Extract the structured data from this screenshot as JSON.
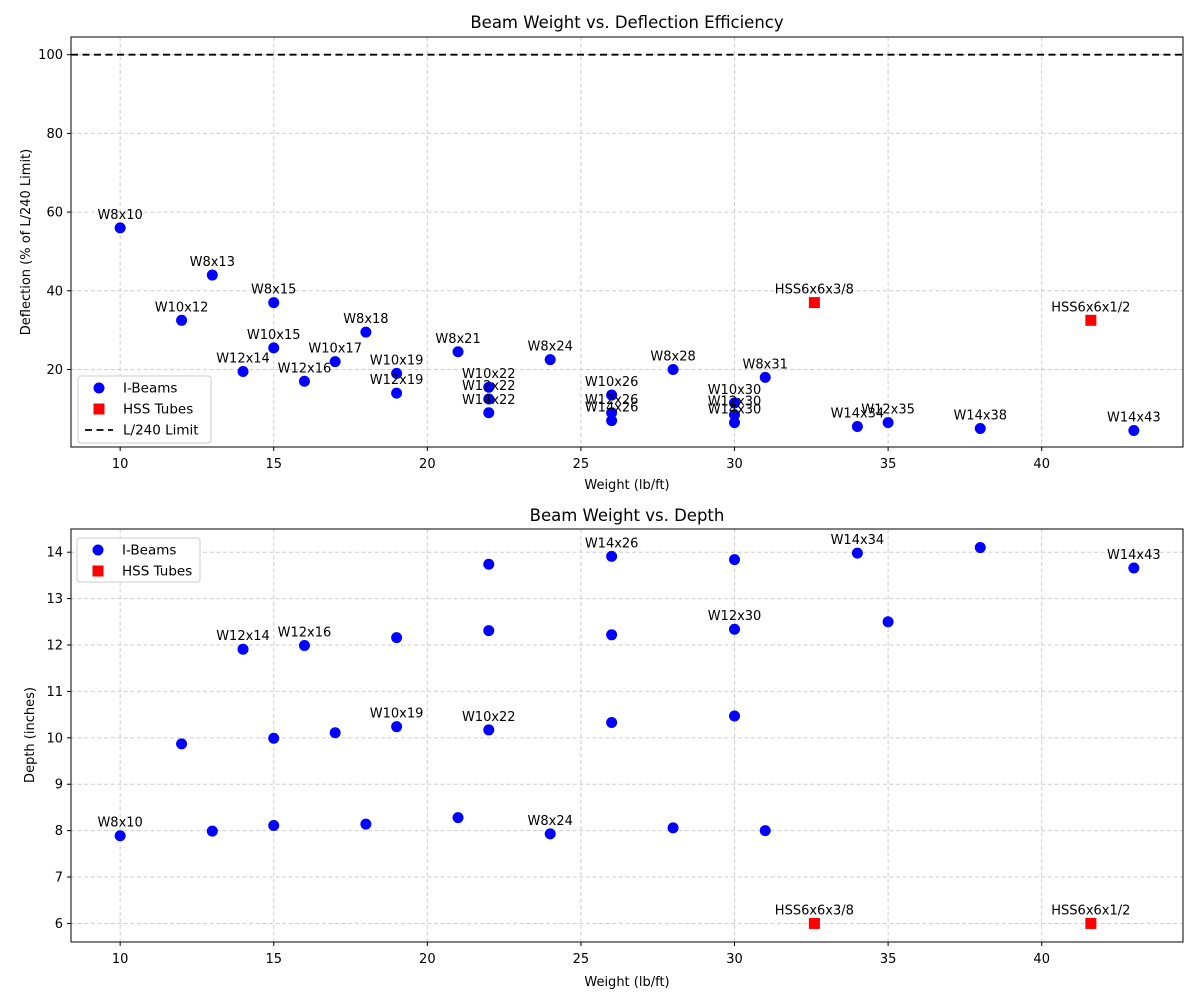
{
  "figure": {
    "background": "#ffffff"
  },
  "colors": {
    "ibeam": "#0000ff",
    "hss": "#ff0000",
    "limit_line": "#000000",
    "grid": "#bdbdbd",
    "spine": "#000000",
    "legend_border": "#cccccc"
  },
  "chart_data": [
    {
      "type": "scatter",
      "title": "Beam Weight vs. Deflection Efficiency",
      "xlabel": "Weight (lb/ft)",
      "ylabel": "Deflection (% of L/240 Limit)",
      "xlim": [
        8.4,
        44.6
      ],
      "ylim": [
        0.3,
        104.5
      ],
      "xticks": [
        10,
        15,
        20,
        25,
        30,
        35,
        40
      ],
      "yticks": [
        20,
        40,
        60,
        80,
        100
      ],
      "grid": true,
      "hline": {
        "y": 100
      },
      "legend": {
        "position": "lower left",
        "entries": [
          {
            "label": "I-Beams",
            "marker": "circle",
            "color_key": "ibeam"
          },
          {
            "label": "HSS Tubes",
            "marker": "square",
            "color_key": "hss"
          },
          {
            "label": "L/240 Limit",
            "marker": "dashed-line",
            "color_key": "limit_line"
          }
        ]
      },
      "series": [
        {
          "name": "I-Beams",
          "marker": "circle",
          "color_key": "ibeam",
          "points": [
            {
              "label": "W8x10",
              "x": 10,
              "y": 56,
              "show_label": true
            },
            {
              "label": "W10x12",
              "x": 12,
              "y": 32.5,
              "show_label": true
            },
            {
              "label": "W8x13",
              "x": 13,
              "y": 44,
              "show_label": true
            },
            {
              "label": "W12x14",
              "x": 14,
              "y": 19.5,
              "show_label": true
            },
            {
              "label": "W8x15",
              "x": 15,
              "y": 37,
              "show_label": true
            },
            {
              "label": "W10x15",
              "x": 15,
              "y": 25.5,
              "show_label": true
            },
            {
              "label": "W12x16",
              "x": 16,
              "y": 17,
              "show_label": true
            },
            {
              "label": "W10x17",
              "x": 17,
              "y": 22,
              "show_label": true
            },
            {
              "label": "W8x18",
              "x": 18,
              "y": 29.5,
              "show_label": true
            },
            {
              "label": "W10x19",
              "x": 19,
              "y": 19,
              "show_label": true
            },
            {
              "label": "W12x19",
              "x": 19,
              "y": 14,
              "show_label": true
            },
            {
              "label": "W8x21",
              "x": 21,
              "y": 24.5,
              "show_label": true
            },
            {
              "label": "W10x22",
              "x": 22,
              "y": 15.5,
              "show_label": true
            },
            {
              "label": "W12x22",
              "x": 22,
              "y": 12.5,
              "show_label": true
            },
            {
              "label": "W14x22",
              "x": 22,
              "y": 9,
              "show_label": true
            },
            {
              "label": "W8x24",
              "x": 24,
              "y": 22.5,
              "show_label": true
            },
            {
              "label": "W10x26",
              "x": 26,
              "y": 13.5,
              "show_label": true
            },
            {
              "label": "W12x26",
              "x": 26,
              "y": 9,
              "show_label": true
            },
            {
              "label": "W14x26",
              "x": 26,
              "y": 7,
              "show_label": true
            },
            {
              "label": "W8x28",
              "x": 28,
              "y": 20,
              "show_label": true
            },
            {
              "label": "W10x30",
              "x": 30,
              "y": 11.5,
              "show_label": true
            },
            {
              "label": "W12x30",
              "x": 30,
              "y": 8.5,
              "show_label": true
            },
            {
              "label": "W14x30",
              "x": 30,
              "y": 6.5,
              "show_label": true
            },
            {
              "label": "W8x31",
              "x": 31,
              "y": 18,
              "show_label": true
            },
            {
              "label": "W14x34",
              "x": 34,
              "y": 5.5,
              "show_label": true
            },
            {
              "label": "W12x35",
              "x": 35,
              "y": 6.5,
              "show_label": true
            },
            {
              "label": "W14x38",
              "x": 38,
              "y": 5,
              "show_label": true
            },
            {
              "label": "W14x43",
              "x": 43,
              "y": 4.5,
              "show_label": true
            }
          ]
        },
        {
          "name": "HSS Tubes",
          "marker": "square",
          "color_key": "hss",
          "points": [
            {
              "label": "HSS6x6x3/8",
              "x": 32.6,
              "y": 37,
              "show_label": true
            },
            {
              "label": "HSS6x6x1/2",
              "x": 41.6,
              "y": 32.5,
              "show_label": true
            }
          ]
        }
      ]
    },
    {
      "type": "scatter",
      "title": "Beam Weight vs. Depth",
      "xlabel": "Weight (lb/ft)",
      "ylabel": "Depth (inches)",
      "xlim": [
        8.4,
        44.6
      ],
      "ylim": [
        5.6,
        14.5
      ],
      "xticks": [
        10,
        15,
        20,
        25,
        30,
        35,
        40
      ],
      "yticks": [
        6,
        7,
        8,
        9,
        10,
        11,
        12,
        13,
        14
      ],
      "grid": true,
      "legend": {
        "position": "upper left",
        "entries": [
          {
            "label": "I-Beams",
            "marker": "circle",
            "color_key": "ibeam"
          },
          {
            "label": "HSS Tubes",
            "marker": "square",
            "color_key": "hss"
          }
        ]
      },
      "series": [
        {
          "name": "I-Beams",
          "marker": "circle",
          "color_key": "ibeam",
          "points": [
            {
              "label": "W8x10",
              "x": 10,
              "y": 7.89,
              "show_label": true
            },
            {
              "label": "W10x12",
              "x": 12,
              "y": 9.87,
              "show_label": false
            },
            {
              "label": "W8x13",
              "x": 13,
              "y": 7.99,
              "show_label": false
            },
            {
              "label": "W12x14",
              "x": 14,
              "y": 11.91,
              "show_label": true
            },
            {
              "label": "W8x15",
              "x": 15,
              "y": 8.11,
              "show_label": false
            },
            {
              "label": "W10x15",
              "x": 15,
              "y": 9.99,
              "show_label": false
            },
            {
              "label": "W12x16",
              "x": 16,
              "y": 11.99,
              "show_label": true
            },
            {
              "label": "W10x17",
              "x": 17,
              "y": 10.11,
              "show_label": false
            },
            {
              "label": "W8x18",
              "x": 18,
              "y": 8.14,
              "show_label": false
            },
            {
              "label": "W10x19",
              "x": 19,
              "y": 10.24,
              "show_label": true
            },
            {
              "label": "W12x19",
              "x": 19,
              "y": 12.16,
              "show_label": false
            },
            {
              "label": "W8x21",
              "x": 21,
              "y": 8.28,
              "show_label": false
            },
            {
              "label": "W10x22",
              "x": 22,
              "y": 10.17,
              "show_label": true
            },
            {
              "label": "W12x22",
              "x": 22,
              "y": 12.31,
              "show_label": false
            },
            {
              "label": "W14x22",
              "x": 22,
              "y": 13.74,
              "show_label": false
            },
            {
              "label": "W8x24",
              "x": 24,
              "y": 7.93,
              "show_label": true
            },
            {
              "label": "W10x26",
              "x": 26,
              "y": 10.33,
              "show_label": false
            },
            {
              "label": "W12x26",
              "x": 26,
              "y": 12.22,
              "show_label": false
            },
            {
              "label": "W14x26",
              "x": 26,
              "y": 13.91,
              "show_label": true
            },
            {
              "label": "W8x28",
              "x": 28,
              "y": 8.06,
              "show_label": false
            },
            {
              "label": "W10x30",
              "x": 30,
              "y": 10.47,
              "show_label": false
            },
            {
              "label": "W12x30",
              "x": 30,
              "y": 12.34,
              "show_label": true
            },
            {
              "label": "W14x30",
              "x": 30,
              "y": 13.84,
              "show_label": false
            },
            {
              "label": "W8x31",
              "x": 31,
              "y": 8.0,
              "show_label": false
            },
            {
              "label": "W14x34",
              "x": 34,
              "y": 13.98,
              "show_label": true
            },
            {
              "label": "W12x35",
              "x": 35,
              "y": 12.5,
              "show_label": false
            },
            {
              "label": "W14x38",
              "x": 38,
              "y": 14.1,
              "show_label": false
            },
            {
              "label": "W14x43",
              "x": 43,
              "y": 13.66,
              "show_label": true
            }
          ]
        },
        {
          "name": "HSS Tubes",
          "marker": "square",
          "color_key": "hss",
          "points": [
            {
              "label": "HSS6x6x3/8",
              "x": 32.6,
              "y": 6.0,
              "show_label": true
            },
            {
              "label": "HSS6x6x1/2",
              "x": 41.6,
              "y": 6.0,
              "show_label": true
            }
          ]
        }
      ]
    }
  ]
}
